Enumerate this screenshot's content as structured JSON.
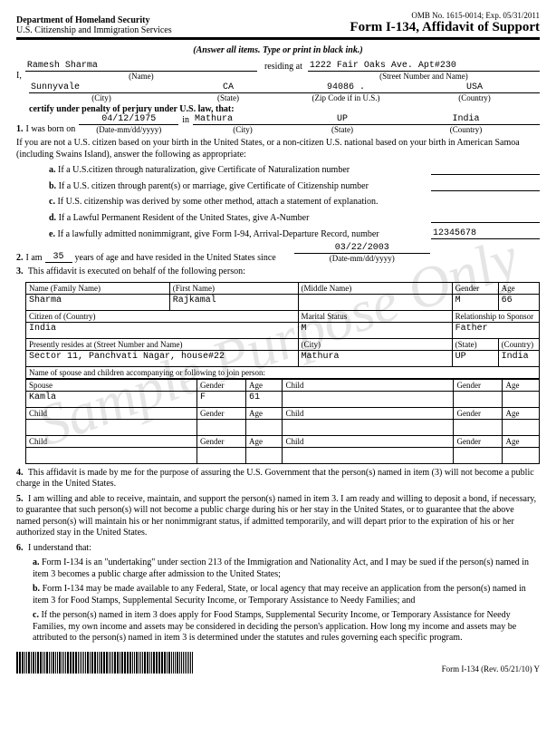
{
  "watermark": "Sample Purpose Only",
  "header": {
    "dept": "Department of Homeland Security",
    "agency": "U.S. Citizenship and Immigration Services",
    "omb": "OMB No. 1615-0014; Exp. 05/31/2011",
    "form_title": "Form I-134, Affidavit of Support"
  },
  "instruction": "(Answer all items. Type or print in black ink.)",
  "sponsor": {
    "i_label": "I,",
    "name": "Ramesh Sharma",
    "name_lbl": "(Name)",
    "residing_at": "residing at",
    "street": "1222 Fair Oaks Ave. Apt#230",
    "street_lbl": "(Street Number and Name)",
    "city": "Sunnyvale",
    "city_lbl": "(City)",
    "state": "CA",
    "state_lbl": "(State)",
    "zip": "94086 .",
    "zip_lbl": "(Zip Code if in U.S.)",
    "country": "USA",
    "country_lbl": "(Country)"
  },
  "certify": "certify under penalty of perjury under U.S. law, that:",
  "q1": {
    "num": "1.",
    "born_on": "I was born on",
    "date": "04/12/1975",
    "date_lbl": "(Date-mm/dd/yyyy)",
    "in": "in",
    "city": "Mathura",
    "city_lbl": "(City)",
    "state": "UP",
    "state_lbl": "(State)",
    "country": "India",
    "country_lbl": "(Country)"
  },
  "citizen_intro": "If you are not a U.S. citizen based on your birth in the United States, or a non-citizen U.S. national based on your birth in American Samoa (including Swains Island), answer the following as appropriate:",
  "items": {
    "a": "If a U.S.citizen through naturalization, give Certificate of Naturalization number",
    "b": "If a U.S. citizen through parent(s) or marriage, give Certificate of Citizenship number",
    "c": "If U.S. citizenship was derived by some other method, attach a statement of explanation.",
    "d": "If a Lawful Permanent Resident of the United States, give A-Number",
    "e": "If a lawfully admitted nonimmigrant, give Form I-94, Arrival-Departure Record, number",
    "e_val": "12345678"
  },
  "q2": {
    "num": "2.",
    "pre": "I am",
    "age": "35",
    "post": "years of age and have resided in the United States since",
    "date": "03/22/2003",
    "date_lbl": "(Date-mm/dd/yyyy)"
  },
  "q3": {
    "num": "3.",
    "text": "This affidavit is executed on behalf of the following person:",
    "h_family": "Name   (Family Name)",
    "h_first": "(First Name)",
    "h_middle": "(Middle Name)",
    "h_gender": "Gender",
    "h_age": "Age",
    "family": "Sharma",
    "first": "Rajkamal",
    "middle": "",
    "gender": "M",
    "age": "66",
    "h_citizen": "Citizen of (Country)",
    "h_marital": "Marital Status",
    "h_rel": "Relationship to Sponsor",
    "citizen": "India",
    "marital": "M",
    "rel": "Father",
    "h_resides": "Presently resides at (Street Number and Name)",
    "h_rcity": "(City)",
    "h_rstate": "(State)",
    "h_rcountry": "(Country)",
    "resides": "Sector 11, Panchvati Nagar, house#22",
    "rcity": "Mathura",
    "rstate": "UP",
    "rcountry": "India",
    "h_spouse": "Name of spouse and children accompanying or following to join person:",
    "r_spouse": "Spouse",
    "r_child": "Child",
    "sp_name": "Kamla",
    "sp_gender": "F",
    "sp_age": "61"
  },
  "q4": {
    "num": "4.",
    "text": "This affidavit is made by me for the purpose of assuring the U.S. Government that the person(s) named in item (3) will not become a public charge in the United States."
  },
  "q5": {
    "num": "5.",
    "text": "I am willing and able to receive, maintain, and support the person(s) named in item 3.  I am ready and willing to deposit a bond, if necessary, to guarantee that such person(s) will not become a public charge during his or her stay in the United States, or to guarantee that the above named person(s) will maintain his or her nonimmigrant status, if admitted temporarily, and will depart prior to the expiration of his or her authorized stay in the United States."
  },
  "q6": {
    "num": "6.",
    "text": "I understand that:",
    "a": "Form I-134 is an \"undertaking\" under section 213 of the Immigration and Nationality Act, and I may be sued if the person(s) named in item 3 becomes a public charge after admission to the United States;",
    "b": "Form I-134 may be made available to any Federal, State, or local agency that may receive an application from the person(s) named in item 3 for Food Stamps, Supplemental Security Income, or Temporary Assistance to Needy Families; and",
    "c": "If the person(s) named in item 3 does apply for Food Stamps, Supplemental Security Income, or Temporary Assistance for Needy Families, my own income and assets may be considered in deciding the person's application.  How long my income and assets may be attributed to the person(s) named in item 3 is determined under the statutes and rules governing each specific program."
  },
  "footer": "Form I-134 (Rev. 05/21/10) Y"
}
